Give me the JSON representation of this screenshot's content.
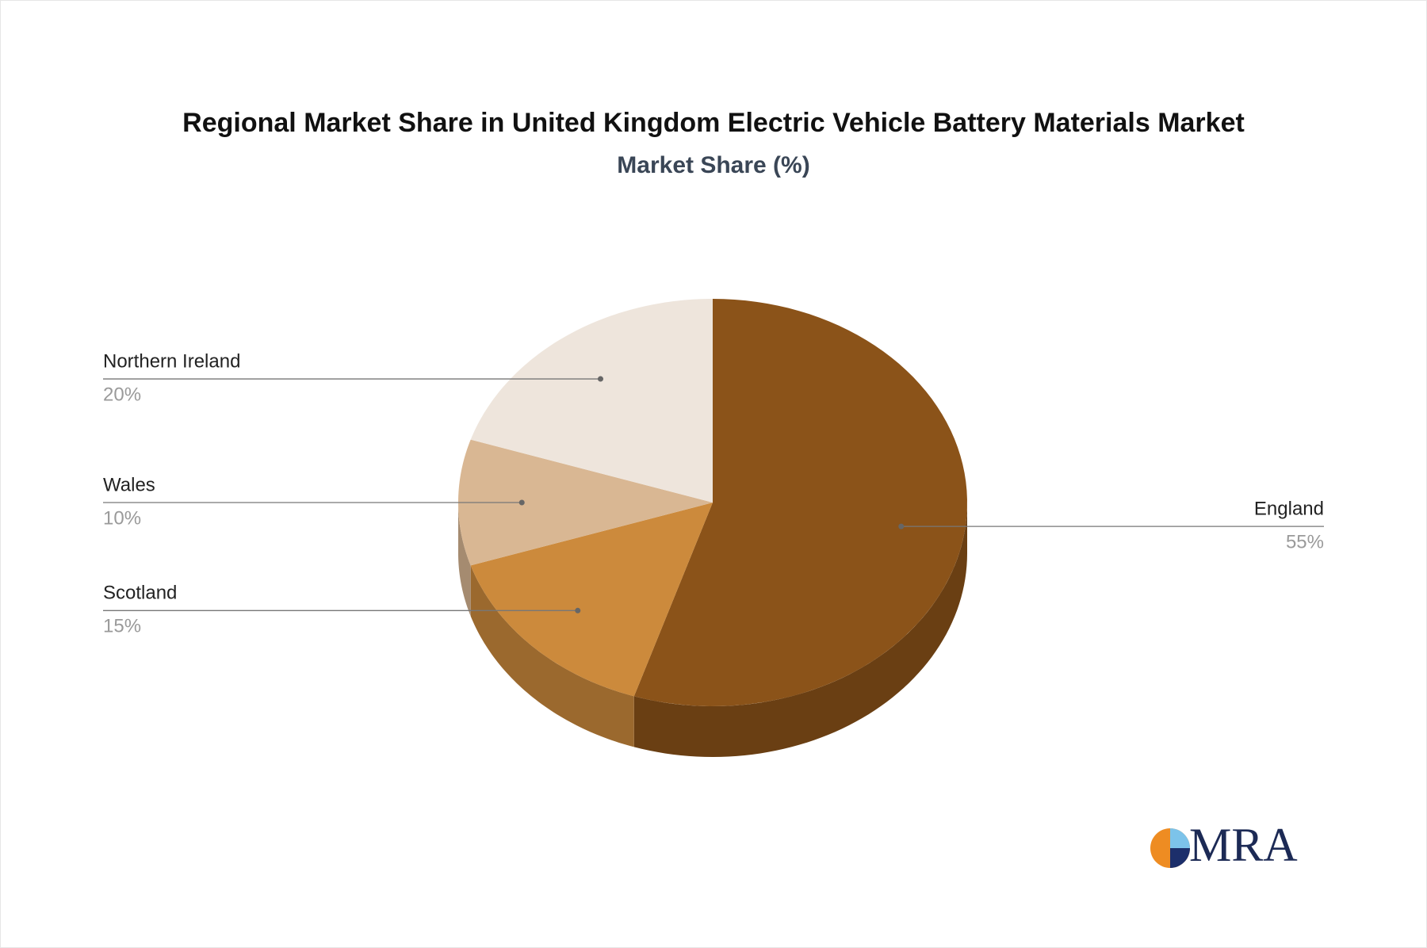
{
  "chart_data": {
    "type": "pie",
    "title": "Regional Market Share in United Kingdom Electric Vehicle Battery Materials Market",
    "subtitle": "Market Share (%)",
    "categories": [
      "England",
      "Scotland",
      "Wales",
      "Northern Ireland"
    ],
    "values": [
      55,
      15,
      10,
      20
    ],
    "value_labels": [
      "55%",
      "15%",
      "10%",
      "20%"
    ],
    "colors": [
      "#8b5319",
      "#cc8a3c",
      "#d9b793",
      "#eee5dc"
    ]
  },
  "logo": {
    "text": "MRA"
  }
}
